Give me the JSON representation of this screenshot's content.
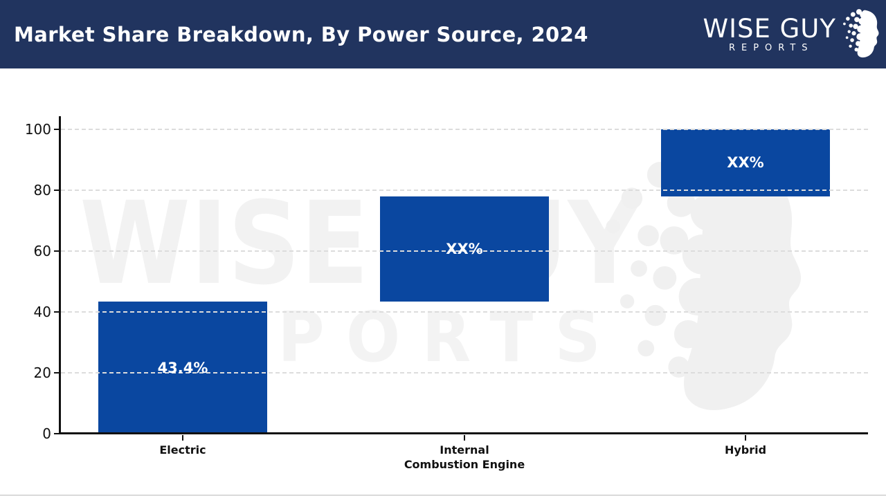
{
  "header": {
    "title": "Market Share Breakdown, By Power Source, 2024",
    "bg_color": "#21345f",
    "logo": {
      "wordmark": "WISE GUY",
      "subtitle": "REPORTS"
    }
  },
  "watermark": {
    "wordmark": "WISE GUY",
    "subtitle": "REPORTS"
  },
  "chart_data": {
    "type": "bar",
    "variant": "floating-waterfall-segments",
    "title": "Market Share Breakdown, By Power Source, 2024",
    "categories": [
      "Electric",
      "Internal Combustion Engine",
      "Hybrid"
    ],
    "categories_display": [
      [
        "Electric"
      ],
      [
        "Internal",
        "Combustion Engine"
      ],
      [
        "Hybrid"
      ]
    ],
    "segments": [
      {
        "category": "Electric",
        "start": 0,
        "end": 43.4,
        "label": "43.4%"
      },
      {
        "category": "Internal Combustion Engine",
        "start": 43.4,
        "end": 78,
        "label": "XX%"
      },
      {
        "category": "Hybrid",
        "start": 78,
        "end": 100,
        "label": "XX%"
      }
    ],
    "xlabel": "",
    "ylabel": "",
    "ylim": [
      0,
      105
    ],
    "yticks": [
      0,
      20,
      40,
      60,
      80,
      100
    ],
    "grid": "horizontal-dashed",
    "legend": null,
    "bar_color": "#0a47a0",
    "value_label_color": "#ffffff",
    "gridline_color": "#dcdcdc",
    "axis_color": "#111111",
    "tick_label_color": "#111111"
  },
  "footer": {
    "divider_color": "#d9d9d9"
  }
}
